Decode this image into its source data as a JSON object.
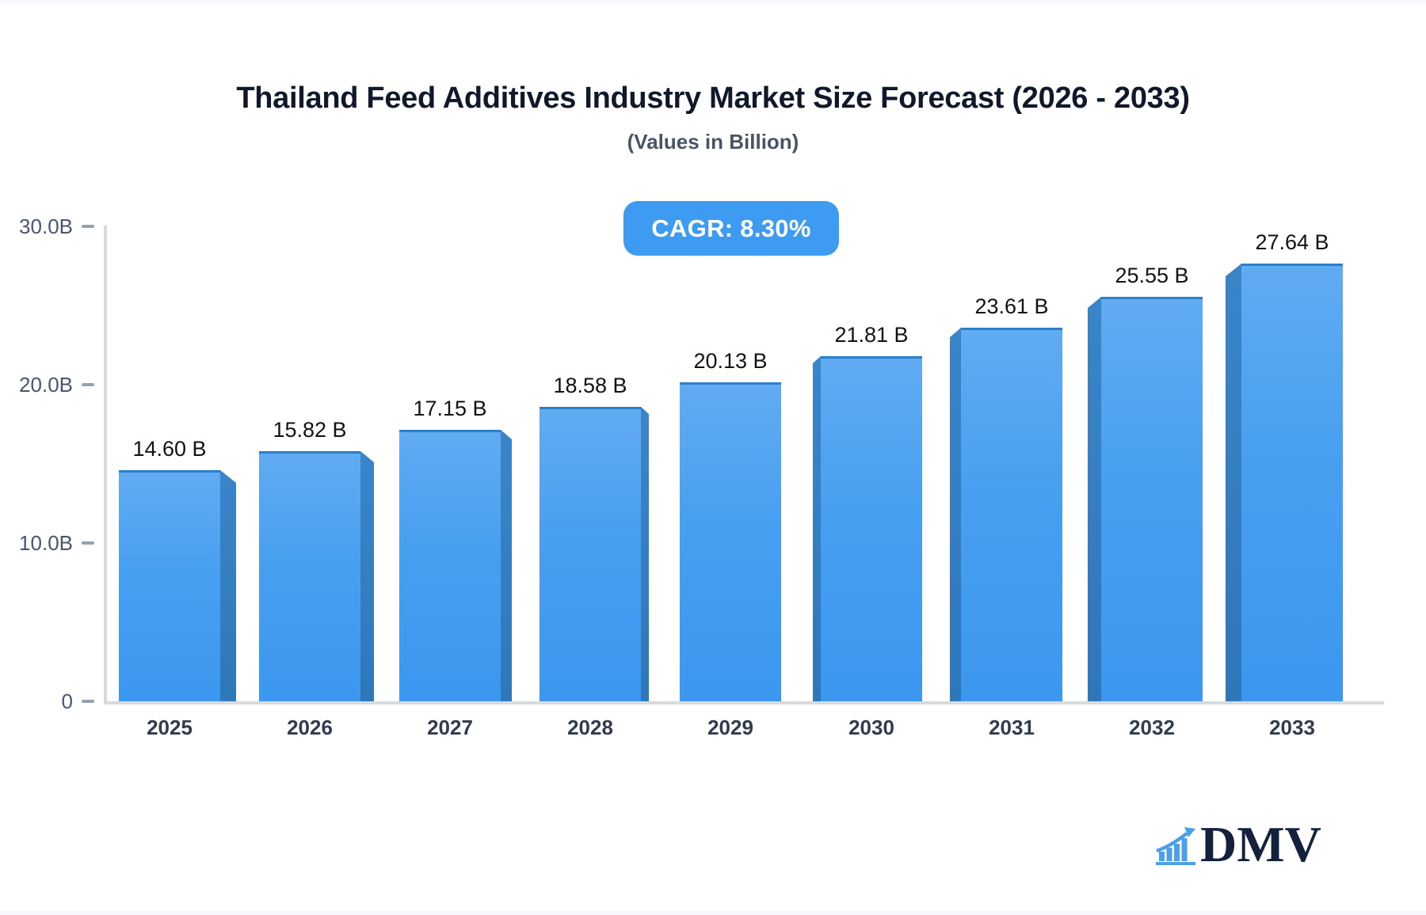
{
  "header": {
    "title": "Thailand Feed Additives Industry Market Size Forecast (2026 - 2033)",
    "subtitle": "(Values in Billion)"
  },
  "cagr_badge": {
    "label": "CAGR: 8.30%"
  },
  "brand": {
    "text": "DMV",
    "icon": "bar-chart-growth-icon"
  },
  "colors": {
    "accent": "#3d9cf1",
    "bar_face_top": "#61abf2",
    "bar_face_bottom": "#3b97ef",
    "bar_side": "#2e77ba",
    "bar_top_line": "#2b7fcb",
    "axis": "#d7dbe0",
    "tick": "#97a1ae",
    "tick_label": "#49556a",
    "year_label": "#2e3b50",
    "value_label": "#101216",
    "title": "#10182b",
    "subtitle": "#4a5563",
    "logo_text": "#14213c",
    "logo_icon": "#4ba0e8"
  },
  "chart_data": {
    "type": "bar",
    "title": "Thailand Feed Additives Industry Market Size Forecast (2026 - 2033)",
    "subtitle": "(Values in Billion)",
    "unit": "Billion",
    "cagr": "8.30%",
    "categories": [
      "2025",
      "2026",
      "2027",
      "2028",
      "2029",
      "2030",
      "2031",
      "2032",
      "2033"
    ],
    "values": [
      14.6,
      15.82,
      17.15,
      18.58,
      20.13,
      21.81,
      23.61,
      25.55,
      27.64
    ],
    "value_labels": [
      "14.60 B",
      "15.82 B",
      "17.15 B",
      "18.58 B",
      "20.13 B",
      "21.81 B",
      "23.61 B",
      "25.55 B",
      "27.64 B"
    ],
    "y_ticks": [
      {
        "label": "0",
        "value": 0
      },
      {
        "label": "10.0B",
        "value": 10
      },
      {
        "label": "20.0B",
        "value": 20
      },
      {
        "label": "30.0B",
        "value": 30
      }
    ],
    "ylim": [
      0,
      30
    ],
    "grid": false,
    "legend": null,
    "bar_style": "pseudo-3d-perspective"
  }
}
